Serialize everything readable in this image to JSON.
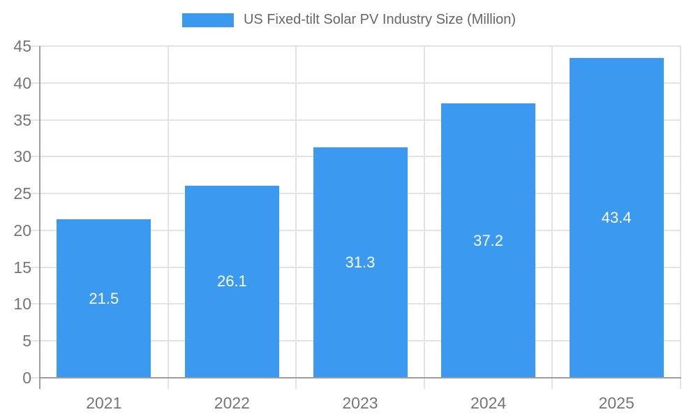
{
  "chart_data": {
    "type": "bar",
    "title": "US Fixed-tilt Solar PV Industry Size (Million)",
    "legend": {
      "label": "US Fixed-tilt Solar PV Industry Size (Million)",
      "position": "top-center",
      "swatch_color": "#3B99F0"
    },
    "categories": [
      "2021",
      "2022",
      "2023",
      "2024",
      "2025"
    ],
    "values": [
      21.5,
      26.1,
      31.3,
      37.2,
      43.4
    ],
    "value_labels": [
      "21.5",
      "26.1",
      "31.3",
      "37.2",
      "43.4"
    ],
    "xlabel": "",
    "ylabel": "",
    "ylim": [
      0,
      45
    ],
    "yticks": [
      0,
      5,
      10,
      15,
      20,
      25,
      30,
      35,
      40,
      45
    ],
    "grid": true,
    "colors": {
      "bar": "#3B99F0",
      "bar_value_text": "#FFFFFF",
      "axis_line": "#9E9E9E",
      "gridline": "#E3E3E3",
      "tick_label": "#757575",
      "legend_text": "#666666",
      "background": "#FFFFFF"
    }
  }
}
